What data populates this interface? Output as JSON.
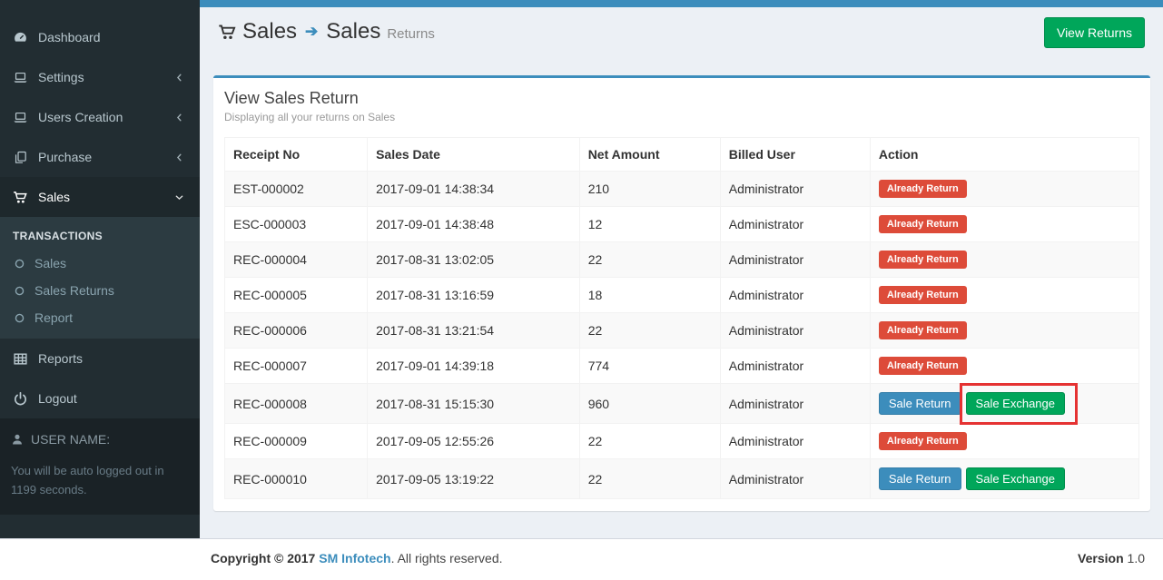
{
  "colors": {
    "accent_blue": "#3c8dbc",
    "green": "#00a65a",
    "red_badge": "#dd4b39",
    "sidebar_bg": "#222d32",
    "sidebar_active_bg": "#1e282c",
    "submenu_bg": "#2c3b41",
    "user_panel_bg": "#1a2226",
    "content_bg": "#ecf0f5",
    "annotation_red": "#e53232"
  },
  "sidebar": {
    "items": [
      {
        "label": "Dashboard",
        "icon": "dashboard-icon"
      },
      {
        "label": "Settings",
        "icon": "laptop-icon",
        "chevron": "left"
      },
      {
        "label": "Users Creation",
        "icon": "laptop-icon",
        "chevron": "left"
      },
      {
        "label": "Purchase",
        "icon": "copy-icon",
        "chevron": "left"
      },
      {
        "label": "Sales",
        "icon": "cart-icon",
        "chevron": "down",
        "active": true
      }
    ],
    "submenu_header": "TRANSACTIONS",
    "submenu": [
      {
        "label": "Sales"
      },
      {
        "label": "Sales Returns"
      },
      {
        "label": "Report"
      }
    ],
    "items_bottom": [
      {
        "label": "Reports",
        "icon": "table-icon"
      },
      {
        "label": "Logout",
        "icon": "power-icon"
      }
    ],
    "user_panel": {
      "label": "USER NAME:",
      "note_line1": "You will be auto logged out in",
      "note_line2": "1199 seconds."
    }
  },
  "header": {
    "breadcrumb_primary": "Sales",
    "breadcrumb_arrow": "➔",
    "breadcrumb_secondary": "Sales",
    "breadcrumb_suffix": "Returns",
    "view_returns_button": "View Returns"
  },
  "panel": {
    "title": "View Sales Return",
    "subtitle": "Displaying all your returns on Sales"
  },
  "table": {
    "columns": [
      "Receipt No",
      "Sales Date",
      "Net Amount",
      "Billed User",
      "Action"
    ],
    "action_labels": {
      "already_return": "Already Return",
      "sale_return": "Sale Return",
      "sale_exchange": "Sale Exchange"
    },
    "rows": [
      {
        "receipt_no": "EST-000002",
        "sales_date": "2017-09-01 14:38:34",
        "net_amount": "210",
        "billed_user": "Administrator",
        "actions": [
          "already_return"
        ]
      },
      {
        "receipt_no": "ESC-000003",
        "sales_date": "2017-09-01 14:38:48",
        "net_amount": "12",
        "billed_user": "Administrator",
        "actions": [
          "already_return"
        ]
      },
      {
        "receipt_no": "REC-000004",
        "sales_date": "2017-08-31 13:02:05",
        "net_amount": "22",
        "billed_user": "Administrator",
        "actions": [
          "already_return"
        ]
      },
      {
        "receipt_no": "REC-000005",
        "sales_date": "2017-08-31 13:16:59",
        "net_amount": "18",
        "billed_user": "Administrator",
        "actions": [
          "already_return"
        ]
      },
      {
        "receipt_no": "REC-000006",
        "sales_date": "2017-08-31 13:21:54",
        "net_amount": "22",
        "billed_user": "Administrator",
        "actions": [
          "already_return"
        ]
      },
      {
        "receipt_no": "REC-000007",
        "sales_date": "2017-09-01 14:39:18",
        "net_amount": "774",
        "billed_user": "Administrator",
        "actions": [
          "already_return"
        ]
      },
      {
        "receipt_no": "REC-000008",
        "sales_date": "2017-08-31 15:15:30",
        "net_amount": "960",
        "billed_user": "Administrator",
        "actions": [
          "sale_return",
          "sale_exchange"
        ],
        "highlight_exchange": true
      },
      {
        "receipt_no": "REC-000009",
        "sales_date": "2017-09-05 12:55:26",
        "net_amount": "22",
        "billed_user": "Administrator",
        "actions": [
          "already_return"
        ]
      },
      {
        "receipt_no": "REC-000010",
        "sales_date": "2017-09-05 13:19:22",
        "net_amount": "22",
        "billed_user": "Administrator",
        "actions": [
          "sale_return",
          "sale_exchange"
        ]
      }
    ]
  },
  "footer": {
    "copyright_prefix": "Copyright © 2017 ",
    "company": "SM Infotech",
    "copyright_suffix": ". All rights reserved.",
    "version_label": "Version",
    "version_value": " 1.0"
  }
}
